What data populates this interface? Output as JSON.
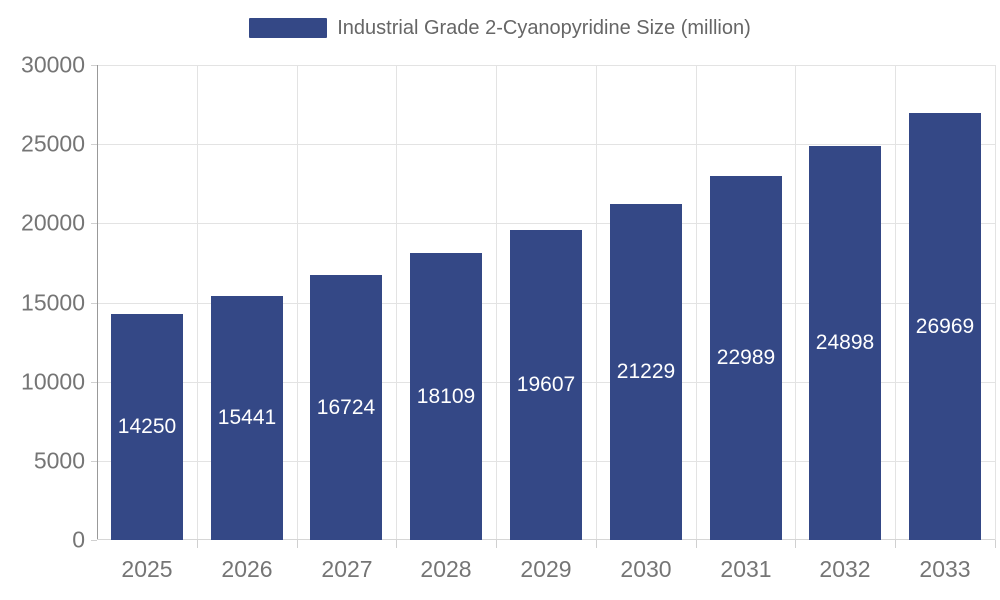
{
  "legend": {
    "label": "Industrial Grade 2-Cyanopyridine Size (million)"
  },
  "chart_data": {
    "type": "bar",
    "title": "Industrial Grade 2-Cyanopyridine Size (million)",
    "categories": [
      "2025",
      "2026",
      "2027",
      "2028",
      "2029",
      "2030",
      "2031",
      "2032",
      "2033"
    ],
    "values": [
      14250,
      15441,
      16724,
      18109,
      19607,
      21229,
      22989,
      24898,
      26969
    ],
    "xlabel": "",
    "ylabel": "",
    "ylim": [
      0,
      30000
    ],
    "ytick_step": 5000,
    "ytick_labels": [
      "0",
      "5000",
      "10000",
      "15000",
      "20000",
      "25000",
      "30000"
    ],
    "grid": true,
    "legend_position": "top",
    "bar_labels_visible": true,
    "bar_label_position": "inside-center"
  },
  "colors": {
    "bar": "#344886",
    "grid": "#e3e3e3",
    "axis_line": "#999999",
    "tick_text": "#757575",
    "legend_text": "#666666",
    "bar_label_text": "#ffffff",
    "background": "#ffffff"
  }
}
